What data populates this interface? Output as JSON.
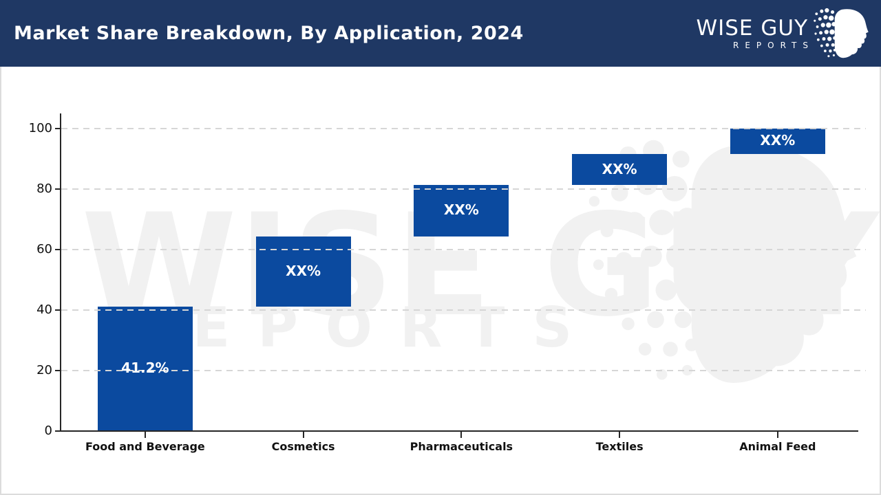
{
  "header": {
    "title": "Market Share Breakdown, By Application, 2024",
    "logo": {
      "brand_line1": "WISE GUY",
      "brand_line2": "REPORTS"
    }
  },
  "watermark": {
    "brand_line1": "WISE GUY",
    "brand_line2": "REPORTS"
  },
  "colors": {
    "header_bg": "#1f3864",
    "bar": "#0b4a9f",
    "bar_label": "#ffffff",
    "grid": "#d6d6d6",
    "axis": "#262626",
    "watermark": "#f1f1f1"
  },
  "chart_data": {
    "type": "bar",
    "subtype": "waterfall-floating-bars",
    "title": "Market Share Breakdown, By Application, 2024",
    "categories": [
      "Food and Beverage",
      "Cosmetics",
      "Pharmaceuticals",
      "Textiles",
      "Animal Feed"
    ],
    "segments": [
      {
        "category": "Food and Beverage",
        "start": 0,
        "end": 41.2,
        "label": "41.2%"
      },
      {
        "category": "Cosmetics",
        "start": 41.2,
        "end": 64.4,
        "label": "XX%"
      },
      {
        "category": "Pharmaceuticals",
        "start": 64.4,
        "end": 81.3,
        "label": "XX%"
      },
      {
        "category": "Textiles",
        "start": 81.3,
        "end": 91.6,
        "label": "XX%"
      },
      {
        "category": "Animal Feed",
        "start": 91.6,
        "end": 100,
        "label": "XX%"
      }
    ],
    "xlabel": "",
    "ylabel": "",
    "yticks": [
      0,
      20,
      40,
      60,
      80,
      100
    ],
    "ylim": [
      0,
      105
    ],
    "grid": "horizontal-dashed",
    "legend": "none"
  }
}
